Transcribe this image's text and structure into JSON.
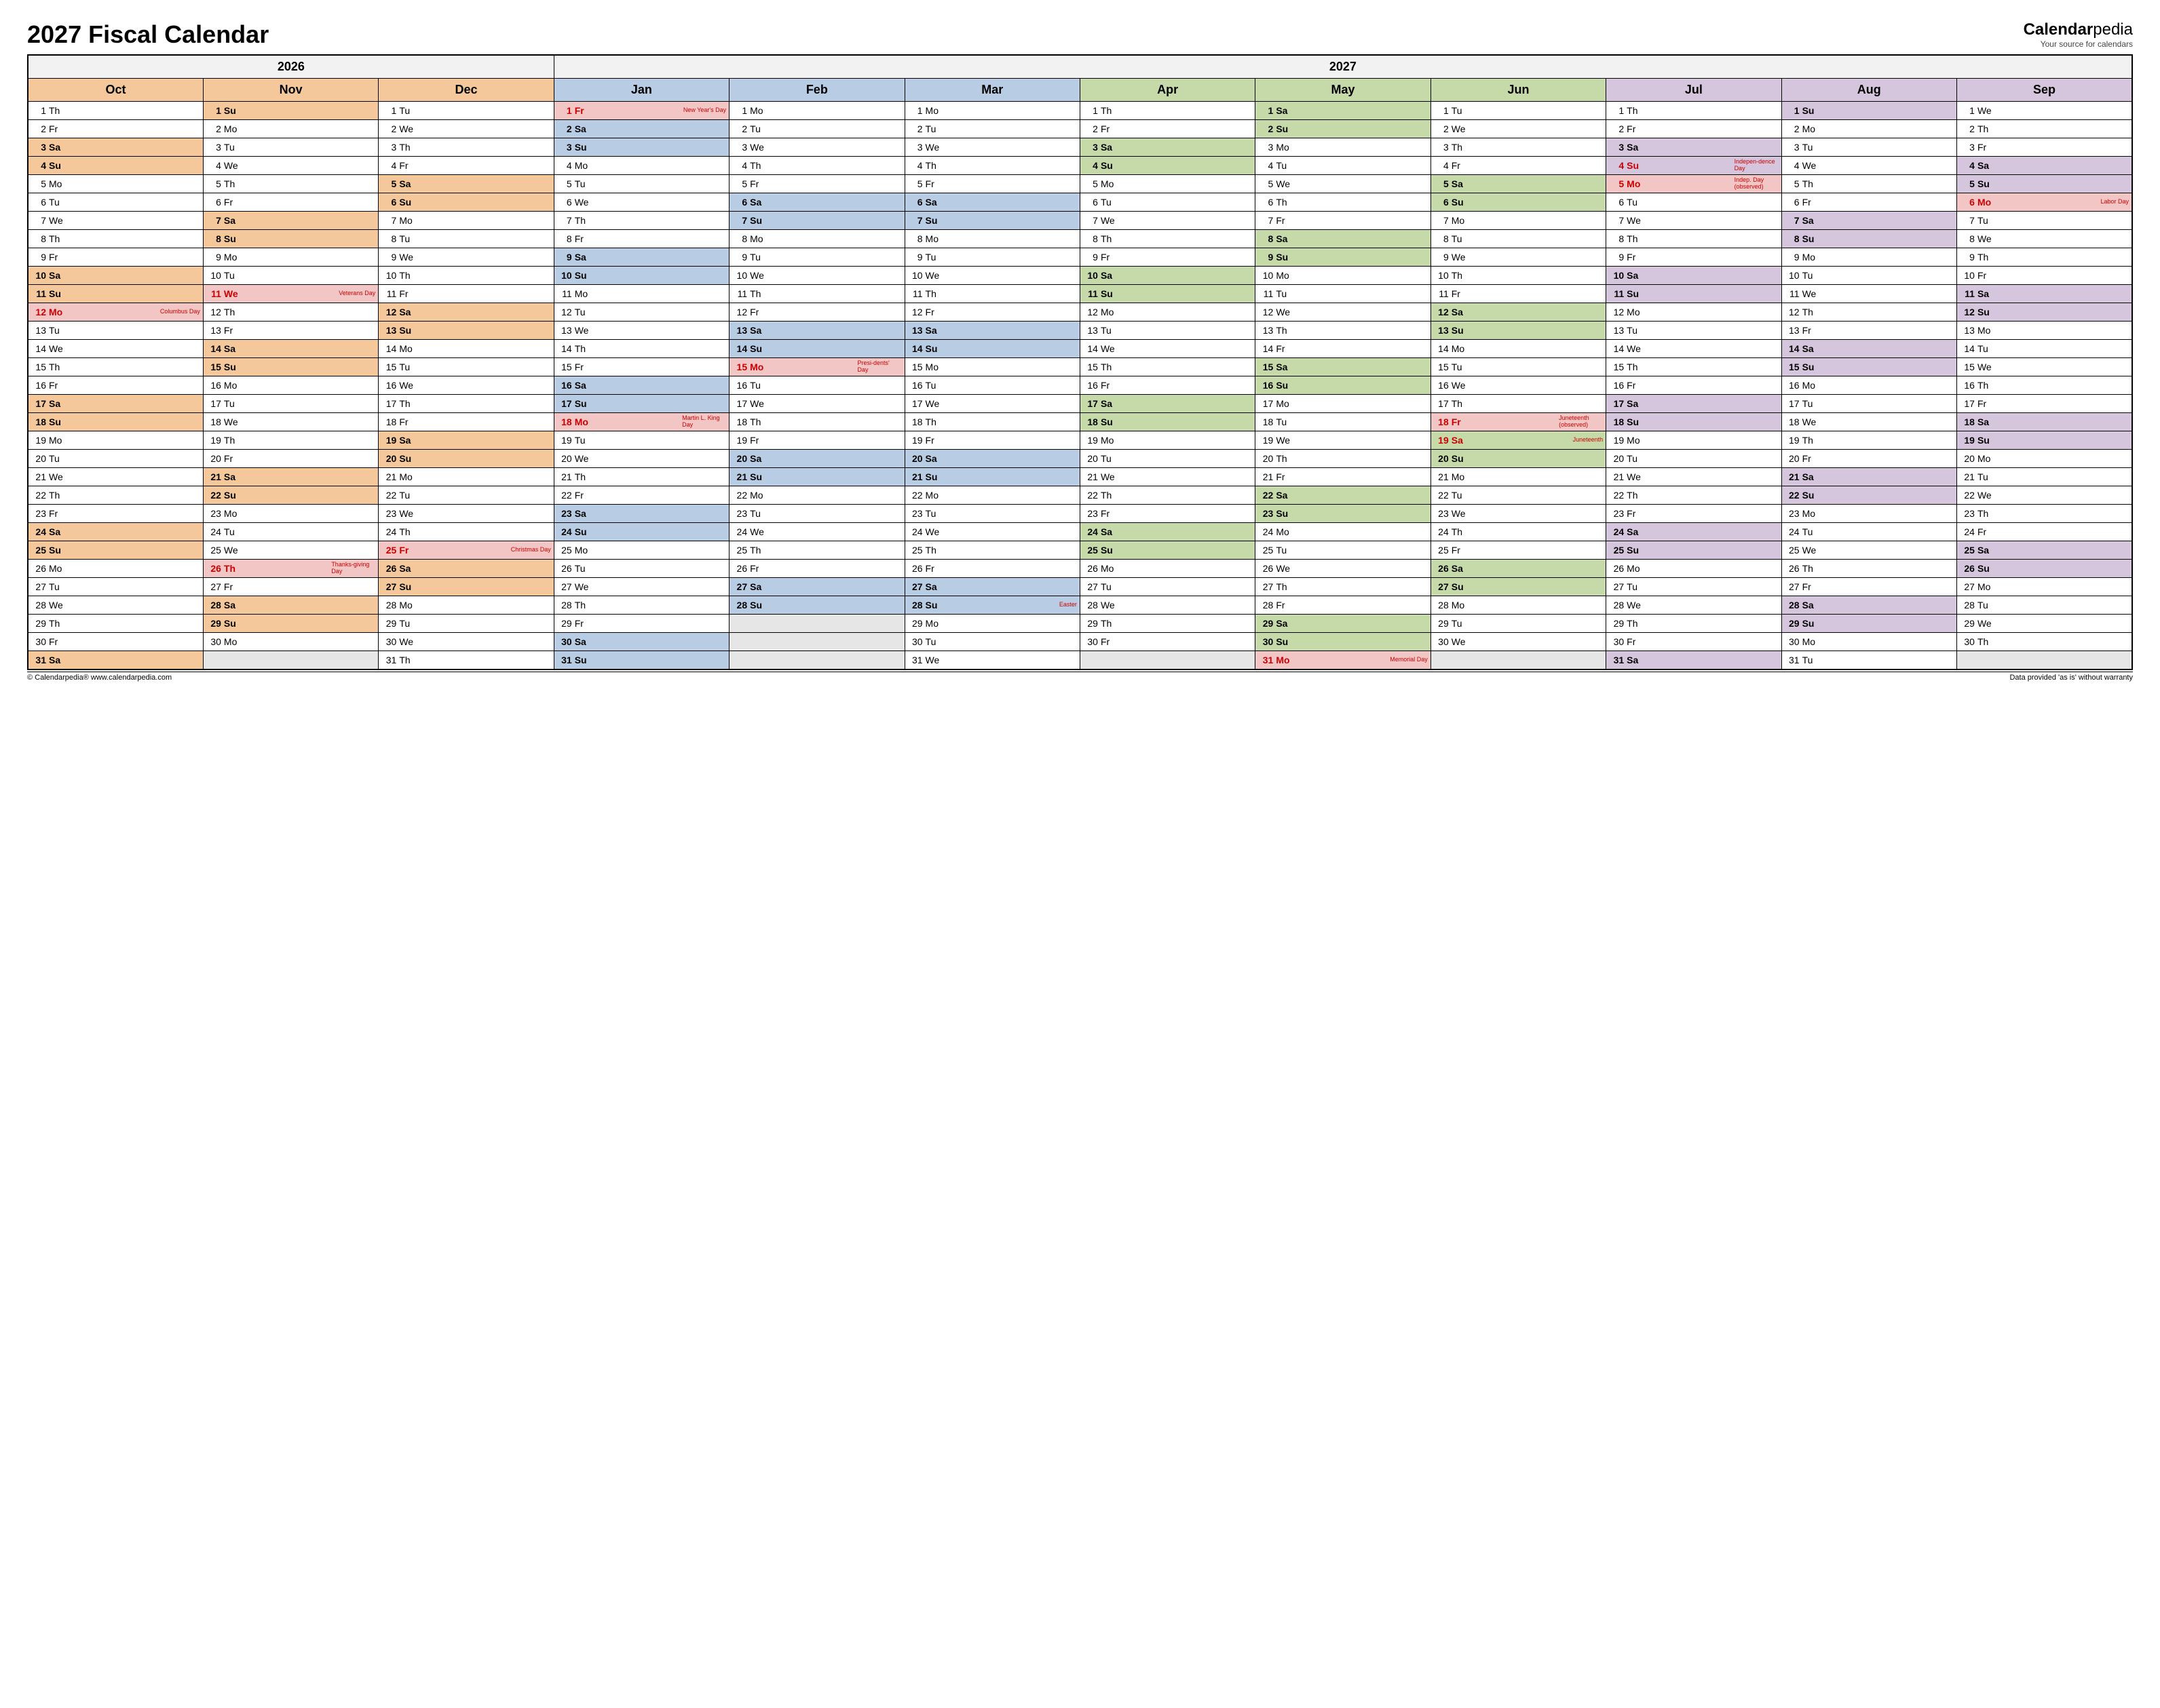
{
  "title": "2027 Fiscal Calendar",
  "brand": {
    "name1": "Calendar",
    "name2": "pedia",
    "tag": "Your source for calendars"
  },
  "footer": {
    "left": "© Calendarpedia®   www.calendarpedia.com",
    "right": "Data provided 'as is' without warranty"
  },
  "yearGroups": [
    {
      "label": "2026",
      "span": 3
    },
    {
      "label": "2027",
      "span": 9
    }
  ],
  "months": [
    {
      "key": "Oct",
      "cls": "m-oct",
      "q": "q1",
      "start": 4,
      "ndays": 31,
      "holidays": {
        "12": "Columbus Day"
      }
    },
    {
      "key": "Nov",
      "cls": "m-nov",
      "q": "q1",
      "start": 0,
      "ndays": 30,
      "holidays": {
        "11": "Veterans Day",
        "26": "Thanks-giving Day"
      }
    },
    {
      "key": "Dec",
      "cls": "m-dec",
      "q": "q1",
      "start": 2,
      "ndays": 31,
      "holidays": {
        "25": "Christmas Day"
      }
    },
    {
      "key": "Jan",
      "cls": "m-jan",
      "q": "q2",
      "start": 5,
      "ndays": 31,
      "holidays": {
        "1": "New Year's Day",
        "18": "Martin L. King Day"
      }
    },
    {
      "key": "Feb",
      "cls": "m-feb",
      "q": "q2",
      "start": 1,
      "ndays": 28,
      "holidays": {
        "15": "Presi-dents' Day"
      }
    },
    {
      "key": "Mar",
      "cls": "m-mar",
      "q": "q2",
      "start": 1,
      "ndays": 31,
      "holidays": {
        "28": "Easter"
      },
      "holidayNoRed": {
        "28": true
      }
    },
    {
      "key": "Apr",
      "cls": "m-apr",
      "q": "q3",
      "start": 4,
      "ndays": 30,
      "holidays": {}
    },
    {
      "key": "May",
      "cls": "m-may",
      "q": "q3",
      "start": 6,
      "ndays": 31,
      "holidays": {
        "31": "Memorial Day"
      }
    },
    {
      "key": "Jun",
      "cls": "m-jun",
      "q": "q3",
      "start": 2,
      "ndays": 30,
      "holidays": {
        "18": "Juneteenth (observed)",
        "19": "Juneteenth"
      }
    },
    {
      "key": "Jul",
      "cls": "m-jul",
      "q": "q4",
      "start": 4,
      "ndays": 31,
      "holidays": {
        "4": "Indepen-dence Day",
        "5": "Indep. Day (observed)"
      }
    },
    {
      "key": "Aug",
      "cls": "m-aug",
      "q": "q4",
      "start": 0,
      "ndays": 31,
      "holidays": {}
    },
    {
      "key": "Sep",
      "cls": "m-sep",
      "q": "q4",
      "start": 3,
      "ndays": 30,
      "holidays": {
        "6": "Labor Day"
      }
    }
  ],
  "dayAbbr": [
    "Su",
    "Mo",
    "Tu",
    "We",
    "Th",
    "Fr",
    "Sa"
  ],
  "maxRows": 31
}
